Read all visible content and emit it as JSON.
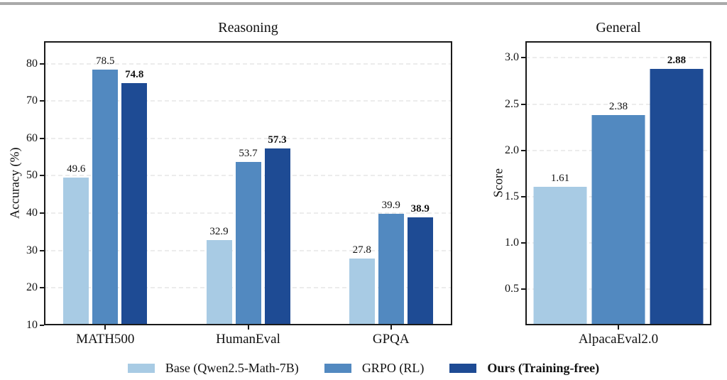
{
  "figure": {
    "background": "#ffffff",
    "top_rule_color": "#a9a9a9"
  },
  "palette": {
    "base": "#a8cbe4",
    "grpo": "#5289c0",
    "ours": "#1e4b94",
    "grid": "#d9d9d9",
    "spine": "#1a1a1a",
    "text": "#111111"
  },
  "chart_data": [
    {
      "type": "bar",
      "title": "Reasoning",
      "xlabel": "",
      "ylabel": "Accuracy (%)",
      "categories": [
        "MATH500",
        "HumanEval",
        "GPQA"
      ],
      "series": [
        {
          "name": "Base (Qwen2.5-Math-7B)",
          "color_key": "base",
          "values": [
            49.6,
            32.9,
            27.8
          ],
          "labels": [
            "49.6",
            "32.9",
            "27.8"
          ],
          "bold_labels": false
        },
        {
          "name": "GRPO (RL)",
          "color_key": "grpo",
          "values": [
            78.5,
            53.7,
            39.9
          ],
          "labels": [
            "78.5",
            "53.7",
            "39.9"
          ],
          "bold_labels": false
        },
        {
          "name": "Ours (Training-free)",
          "color_key": "ours",
          "values": [
            74.8,
            57.3,
            38.9
          ],
          "labels": [
            "74.8",
            "57.3",
            "38.9"
          ],
          "bold_labels": true
        }
      ],
      "ylim": [
        10,
        86
      ],
      "ytick_labels": [
        "10",
        "20",
        "30",
        "40",
        "50",
        "60",
        "70",
        "80"
      ],
      "grid": "horizontal-dashed",
      "legend_position": "bottom-shared"
    },
    {
      "type": "bar",
      "title": "General",
      "xlabel": "",
      "ylabel": "Score",
      "categories": [
        "AlpacaEval2.0"
      ],
      "series": [
        {
          "name": "Base (Qwen2.5-Math-7B)",
          "color_key": "base",
          "values": [
            1.61
          ],
          "labels": [
            "1.61"
          ],
          "bold_labels": false
        },
        {
          "name": "GRPO (RL)",
          "color_key": "grpo",
          "values": [
            2.38
          ],
          "labels": [
            "2.38"
          ],
          "bold_labels": false
        },
        {
          "name": "Ours (Training-free)",
          "color_key": "ours",
          "values": [
            2.88
          ],
          "labels": [
            "2.88"
          ],
          "bold_labels": true
        }
      ],
      "ylim": [
        0.11,
        3.18
      ],
      "ytick_labels": [
        "0.5",
        "1.0",
        "1.5",
        "2.0",
        "2.5",
        "3.0"
      ],
      "grid": "horizontal-dashed",
      "legend_position": "bottom-shared"
    }
  ],
  "legend": {
    "items": [
      {
        "label": "Base (Qwen2.5-Math-7B)",
        "color_key": "base",
        "bold": false
      },
      {
        "label": "GRPO (RL)",
        "color_key": "grpo",
        "bold": false
      },
      {
        "label": "Ours (Training-free)",
        "color_key": "ours",
        "bold": true
      }
    ]
  }
}
